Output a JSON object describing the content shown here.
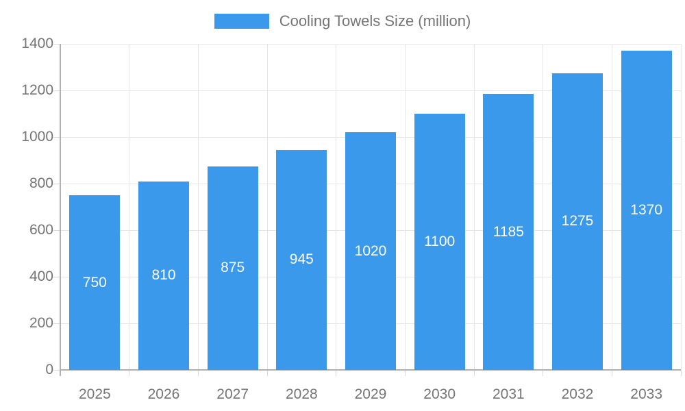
{
  "chart_data": {
    "type": "bar",
    "title": "Cooling Towels Size (million)",
    "legend": {
      "label": "Cooling Towels Size (million)",
      "position": "top"
    },
    "categories": [
      "2025",
      "2026",
      "2027",
      "2028",
      "2029",
      "2030",
      "2031",
      "2032",
      "2033"
    ],
    "values": [
      750,
      810,
      875,
      945,
      1020,
      1100,
      1185,
      1275,
      1370
    ],
    "xlabel": "",
    "ylabel": "",
    "ylim": [
      0,
      1400
    ],
    "yticks": [
      0,
      200,
      400,
      600,
      800,
      1000,
      1200,
      1400
    ],
    "grid": true,
    "data_labels": "inside-center",
    "colors": {
      "bar": "#3B99EC",
      "bar_label": "#FFFFFF",
      "axis_text": "#757575",
      "grid_line": "#E6E6E6",
      "tick": "#D9D9D9",
      "axis_line": "#B0B0B0"
    }
  }
}
